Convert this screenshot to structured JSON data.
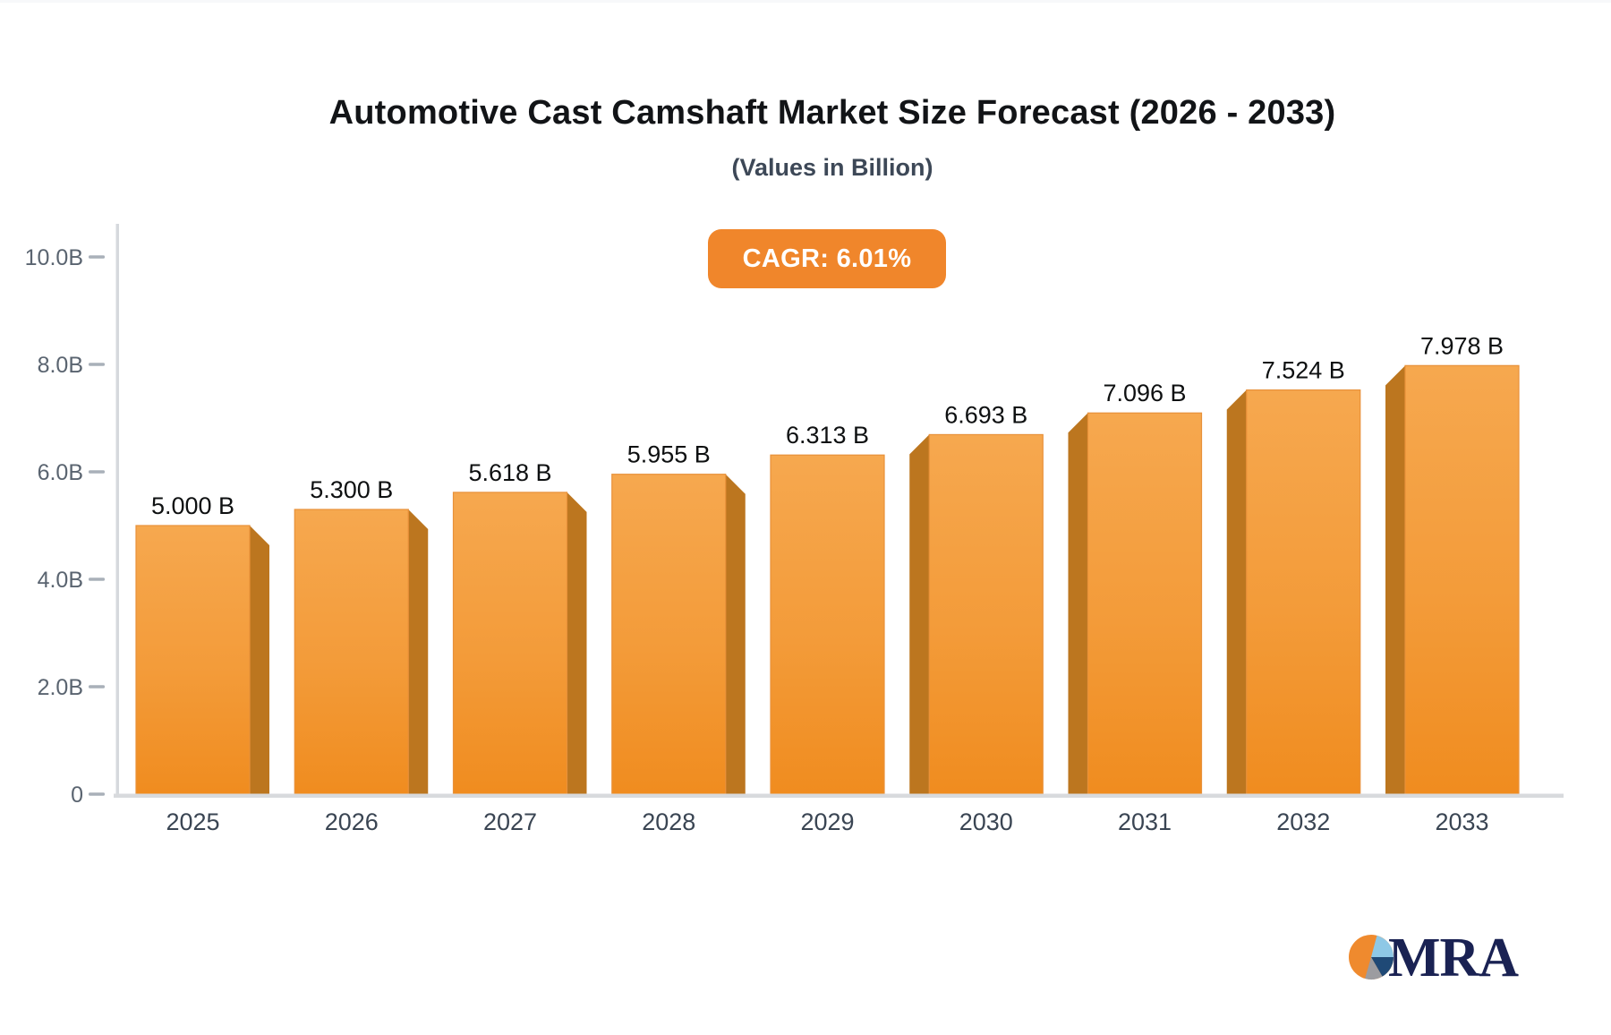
{
  "header": {
    "title": "Automotive Cast Camshaft Market Size Forecast (2026 - 2033)",
    "subtitle": "(Values in Billion)"
  },
  "badge": {
    "label": "CAGR: 6.01%",
    "color": "#f0862b"
  },
  "logo": {
    "text": "MRA",
    "pie_colors": {
      "orange": "#ef8a2e",
      "light_blue": "#8ec8e6",
      "navy": "#1f4976",
      "gray": "#9c9ca0"
    }
  },
  "chart_data": {
    "type": "bar",
    "title": "Automotive Cast Camshaft Market Size Forecast (2026 - 2033)",
    "subtitle": "(Values in Billion)",
    "xlabel": "",
    "ylabel": "",
    "unit": "B",
    "ylim": [
      0,
      10
    ],
    "grid": false,
    "legend": false,
    "categories": [
      "2025",
      "2026",
      "2027",
      "2028",
      "2029",
      "2030",
      "2031",
      "2032",
      "2033"
    ],
    "values": [
      5.0,
      5.3,
      5.618,
      5.955,
      6.313,
      6.693,
      7.096,
      7.524,
      7.978
    ],
    "value_labels": [
      "5.000 B",
      "5.300 B",
      "5.618 B",
      "5.955 B",
      "6.313 B",
      "6.693 B",
      "7.096 B",
      "7.524 B",
      "7.978 B"
    ],
    "yticks": [
      {
        "label": "10.0B",
        "value": 10
      },
      {
        "label": "8.0B",
        "value": 8
      },
      {
        "label": "6.0B",
        "value": 6
      },
      {
        "label": "4.0B",
        "value": 4
      },
      {
        "label": "2.0B",
        "value": 2
      },
      {
        "label": "0",
        "value": 0
      }
    ],
    "bar_colors": {
      "face_top": "#f6a84f",
      "face_mid": "#f39b39",
      "face_bottom": "#f08c1f",
      "face_edge": "#e8913a",
      "side_3d": "#bc761f"
    },
    "axis_colors": {
      "axis_line": "#d6d9dd",
      "baseline": "#d8dadd",
      "tick_dash": "#a9b0b9"
    }
  }
}
